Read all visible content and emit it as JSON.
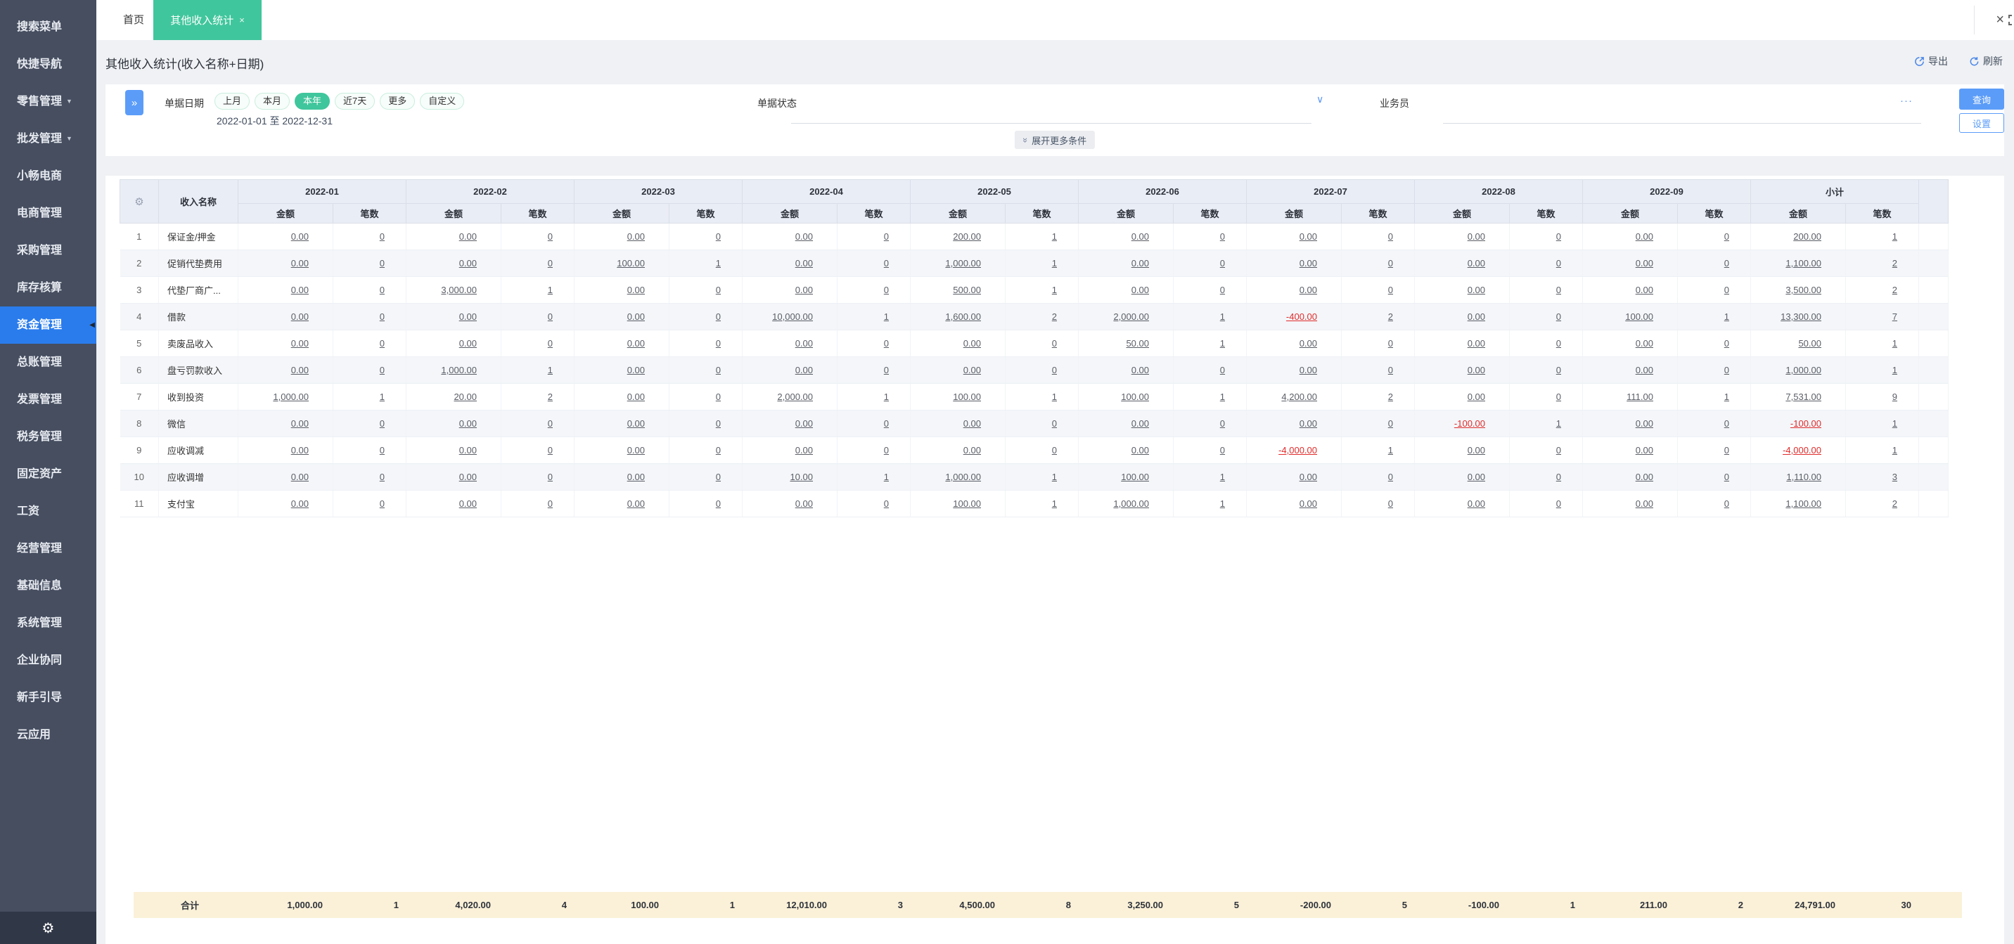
{
  "icons": {
    "caret_down": "▼",
    "collapse_left": "◀",
    "gear": "⚙",
    "double_right": "»",
    "chevron_down": "∨",
    "ellipsis": "···",
    "close": "×"
  },
  "sidebar": {
    "selected_index": 8,
    "items": [
      {
        "label": "搜索菜单",
        "caret": false
      },
      {
        "label": "快捷导航",
        "caret": false
      },
      {
        "label": "零售管理",
        "caret": true
      },
      {
        "label": "批发管理",
        "caret": true
      },
      {
        "label": "小畅电商",
        "caret": false
      },
      {
        "label": "电商管理",
        "caret": false
      },
      {
        "label": "采购管理",
        "caret": false
      },
      {
        "label": "库存核算",
        "caret": false
      },
      {
        "label": "资金管理",
        "caret": false
      },
      {
        "label": "总账管理",
        "caret": false
      },
      {
        "label": "发票管理",
        "caret": false
      },
      {
        "label": "税务管理",
        "caret": false
      },
      {
        "label": "固定资产",
        "caret": false
      },
      {
        "label": "工资",
        "caret": false
      },
      {
        "label": "经营管理",
        "caret": false
      },
      {
        "label": "基础信息",
        "caret": false
      },
      {
        "label": "系统管理",
        "caret": false
      },
      {
        "label": "企业协同",
        "caret": false
      },
      {
        "label": "新手引导",
        "caret": false
      },
      {
        "label": "云应用",
        "caret": false
      }
    ]
  },
  "tabs": {
    "home_label": "首页",
    "active_label": "其他收入统计",
    "close": "×"
  },
  "window_controls": {
    "close": "×"
  },
  "header": {
    "title": "其他收入统计(收入名称+日期)",
    "export_label": "导出",
    "refresh_label": "刷新"
  },
  "filters": {
    "collapse_icon": "»",
    "date_label": "单据日期",
    "pills": [
      "上月",
      "本月",
      "本年",
      "近7天",
      "更多",
      "自定义"
    ],
    "active_pill_index": 2,
    "date_range": "2022-01-01 至 2022-12-31",
    "status_label": "单据状态",
    "salesman_label": "业务员",
    "search_label": "查询",
    "settings_label": "设置",
    "expand_more_label": "展开更多条件"
  },
  "table": {
    "name_col": "收入名称",
    "amount_col": "金额",
    "count_col": "笔数",
    "months": [
      "2022-01",
      "2022-02",
      "2022-03",
      "2022-04",
      "2022-05",
      "2022-06",
      "2022-07",
      "2022-08",
      "2022-09",
      "小计"
    ],
    "rows": [
      {
        "name": "保证金/押金",
        "cells": [
          [
            "0.00",
            "0"
          ],
          [
            "0.00",
            "0"
          ],
          [
            "0.00",
            "0"
          ],
          [
            "0.00",
            "0"
          ],
          [
            "200.00",
            "1"
          ],
          [
            "0.00",
            "0"
          ],
          [
            "0.00",
            "0"
          ],
          [
            "0.00",
            "0"
          ],
          [
            "0.00",
            "0"
          ],
          [
            "200.00",
            "1"
          ]
        ]
      },
      {
        "name": "促销代垫费用",
        "cells": [
          [
            "0.00",
            "0"
          ],
          [
            "0.00",
            "0"
          ],
          [
            "100.00",
            "1"
          ],
          [
            "0.00",
            "0"
          ],
          [
            "1,000.00",
            "1"
          ],
          [
            "0.00",
            "0"
          ],
          [
            "0.00",
            "0"
          ],
          [
            "0.00",
            "0"
          ],
          [
            "0.00",
            "0"
          ],
          [
            "1,100.00",
            "2"
          ]
        ]
      },
      {
        "name": "代垫厂商广...",
        "cells": [
          [
            "0.00",
            "0"
          ],
          [
            "3,000.00",
            "1"
          ],
          [
            "0.00",
            "0"
          ],
          [
            "0.00",
            "0"
          ],
          [
            "500.00",
            "1"
          ],
          [
            "0.00",
            "0"
          ],
          [
            "0.00",
            "0"
          ],
          [
            "0.00",
            "0"
          ],
          [
            "0.00",
            "0"
          ],
          [
            "3,500.00",
            "2"
          ]
        ]
      },
      {
        "name": "借款",
        "cells": [
          [
            "0.00",
            "0"
          ],
          [
            "0.00",
            "0"
          ],
          [
            "0.00",
            "0"
          ],
          [
            "10,000.00",
            "1"
          ],
          [
            "1,600.00",
            "2"
          ],
          [
            "2,000.00",
            "1"
          ],
          [
            "-400.00",
            "2"
          ],
          [
            "0.00",
            "0"
          ],
          [
            "100.00",
            "1"
          ],
          [
            "13,300.00",
            "7"
          ]
        ]
      },
      {
        "name": "卖废品收入",
        "cells": [
          [
            "0.00",
            "0"
          ],
          [
            "0.00",
            "0"
          ],
          [
            "0.00",
            "0"
          ],
          [
            "0.00",
            "0"
          ],
          [
            "0.00",
            "0"
          ],
          [
            "50.00",
            "1"
          ],
          [
            "0.00",
            "0"
          ],
          [
            "0.00",
            "0"
          ],
          [
            "0.00",
            "0"
          ],
          [
            "50.00",
            "1"
          ]
        ]
      },
      {
        "name": "盘亏罚款收入",
        "cells": [
          [
            "0.00",
            "0"
          ],
          [
            "1,000.00",
            "1"
          ],
          [
            "0.00",
            "0"
          ],
          [
            "0.00",
            "0"
          ],
          [
            "0.00",
            "0"
          ],
          [
            "0.00",
            "0"
          ],
          [
            "0.00",
            "0"
          ],
          [
            "0.00",
            "0"
          ],
          [
            "0.00",
            "0"
          ],
          [
            "1,000.00",
            "1"
          ]
        ]
      },
      {
        "name": "收到投资",
        "cells": [
          [
            "1,000.00",
            "1"
          ],
          [
            "20.00",
            "2"
          ],
          [
            "0.00",
            "0"
          ],
          [
            "2,000.00",
            "1"
          ],
          [
            "100.00",
            "1"
          ],
          [
            "100.00",
            "1"
          ],
          [
            "4,200.00",
            "2"
          ],
          [
            "0.00",
            "0"
          ],
          [
            "111.00",
            "1"
          ],
          [
            "7,531.00",
            "9"
          ]
        ]
      },
      {
        "name": "微信",
        "cells": [
          [
            "0.00",
            "0"
          ],
          [
            "0.00",
            "0"
          ],
          [
            "0.00",
            "0"
          ],
          [
            "0.00",
            "0"
          ],
          [
            "0.00",
            "0"
          ],
          [
            "0.00",
            "0"
          ],
          [
            "0.00",
            "0"
          ],
          [
            "-100.00",
            "1"
          ],
          [
            "0.00",
            "0"
          ],
          [
            "-100.00",
            "1"
          ]
        ]
      },
      {
        "name": "应收调减",
        "cells": [
          [
            "0.00",
            "0"
          ],
          [
            "0.00",
            "0"
          ],
          [
            "0.00",
            "0"
          ],
          [
            "0.00",
            "0"
          ],
          [
            "0.00",
            "0"
          ],
          [
            "0.00",
            "0"
          ],
          [
            "-4,000.00",
            "1"
          ],
          [
            "0.00",
            "0"
          ],
          [
            "0.00",
            "0"
          ],
          [
            "-4,000.00",
            "1"
          ]
        ]
      },
      {
        "name": "应收调增",
        "cells": [
          [
            "0.00",
            "0"
          ],
          [
            "0.00",
            "0"
          ],
          [
            "0.00",
            "0"
          ],
          [
            "10.00",
            "1"
          ],
          [
            "1,000.00",
            "1"
          ],
          [
            "100.00",
            "1"
          ],
          [
            "0.00",
            "0"
          ],
          [
            "0.00",
            "0"
          ],
          [
            "0.00",
            "0"
          ],
          [
            "1,110.00",
            "3"
          ]
        ]
      },
      {
        "name": "支付宝",
        "cells": [
          [
            "0.00",
            "0"
          ],
          [
            "0.00",
            "0"
          ],
          [
            "0.00",
            "0"
          ],
          [
            "0.00",
            "0"
          ],
          [
            "100.00",
            "1"
          ],
          [
            "1,000.00",
            "1"
          ],
          [
            "0.00",
            "0"
          ],
          [
            "0.00",
            "0"
          ],
          [
            "0.00",
            "0"
          ],
          [
            "1,100.00",
            "2"
          ]
        ]
      }
    ],
    "total_label": "合计",
    "totals": [
      [
        "1,000.00",
        "1"
      ],
      [
        "4,020.00",
        "4"
      ],
      [
        "100.00",
        "1"
      ],
      [
        "12,010.00",
        "3"
      ],
      [
        "4,500.00",
        "8"
      ],
      [
        "3,250.00",
        "5"
      ],
      [
        "-200.00",
        "5"
      ],
      [
        "-100.00",
        "1"
      ],
      [
        "211.00",
        "2"
      ],
      [
        "24,791.00",
        "30"
      ]
    ]
  },
  "colors": {
    "sidebar_bg": "#464E60",
    "sidebar_active": "#2A7CEC",
    "tab_green": "#40C69C",
    "primary_blue": "#5B9CF8",
    "link_blue": "#4A86E8",
    "negative_red": "#E02B2B",
    "table_header_bg": "#E9EDF5",
    "totals_bg": "#FBF1D8",
    "row_alt_bg": "#F4F6F9"
  }
}
